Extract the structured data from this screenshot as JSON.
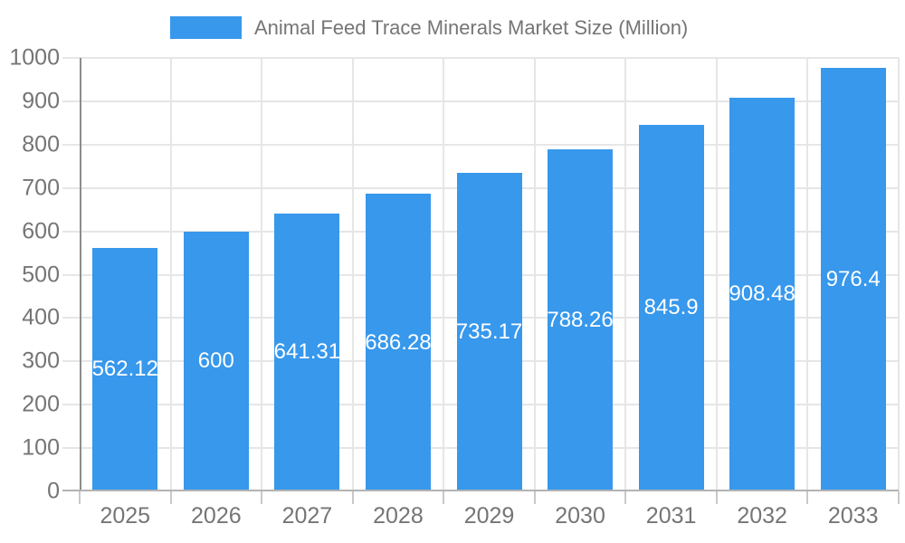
{
  "legend": {
    "label": "Animal Feed Trace Minerals Market Size (Million)"
  },
  "chart_data": {
    "type": "bar",
    "title": "Animal Feed Trace Minerals Market Size (Million)",
    "categories": [
      "2025",
      "2026",
      "2027",
      "2028",
      "2029",
      "2030",
      "2031",
      "2032",
      "2033"
    ],
    "values": [
      562.12,
      600,
      641.31,
      686.28,
      735.17,
      788.26,
      845.9,
      908.48,
      976.4
    ],
    "value_labels": [
      "562.12",
      "600",
      "641.31",
      "686.28",
      "735.17",
      "788.26",
      "845.9",
      "908.48",
      "976.4"
    ],
    "xlabel": "",
    "ylabel": "",
    "ylim": [
      0,
      1000
    ],
    "yticks": [
      0,
      100,
      200,
      300,
      400,
      500,
      600,
      700,
      800,
      900,
      1000
    ],
    "grid": true,
    "legend_position": "top",
    "colors": {
      "bar": "#3798EC",
      "bar_label": "#ffffff",
      "axis_text": "#757575",
      "gridline": "#e6e6e6",
      "x_axis_line": "#b3b3b3",
      "y_axis_line": "#8c8c8c",
      "background": "#ffffff"
    }
  }
}
